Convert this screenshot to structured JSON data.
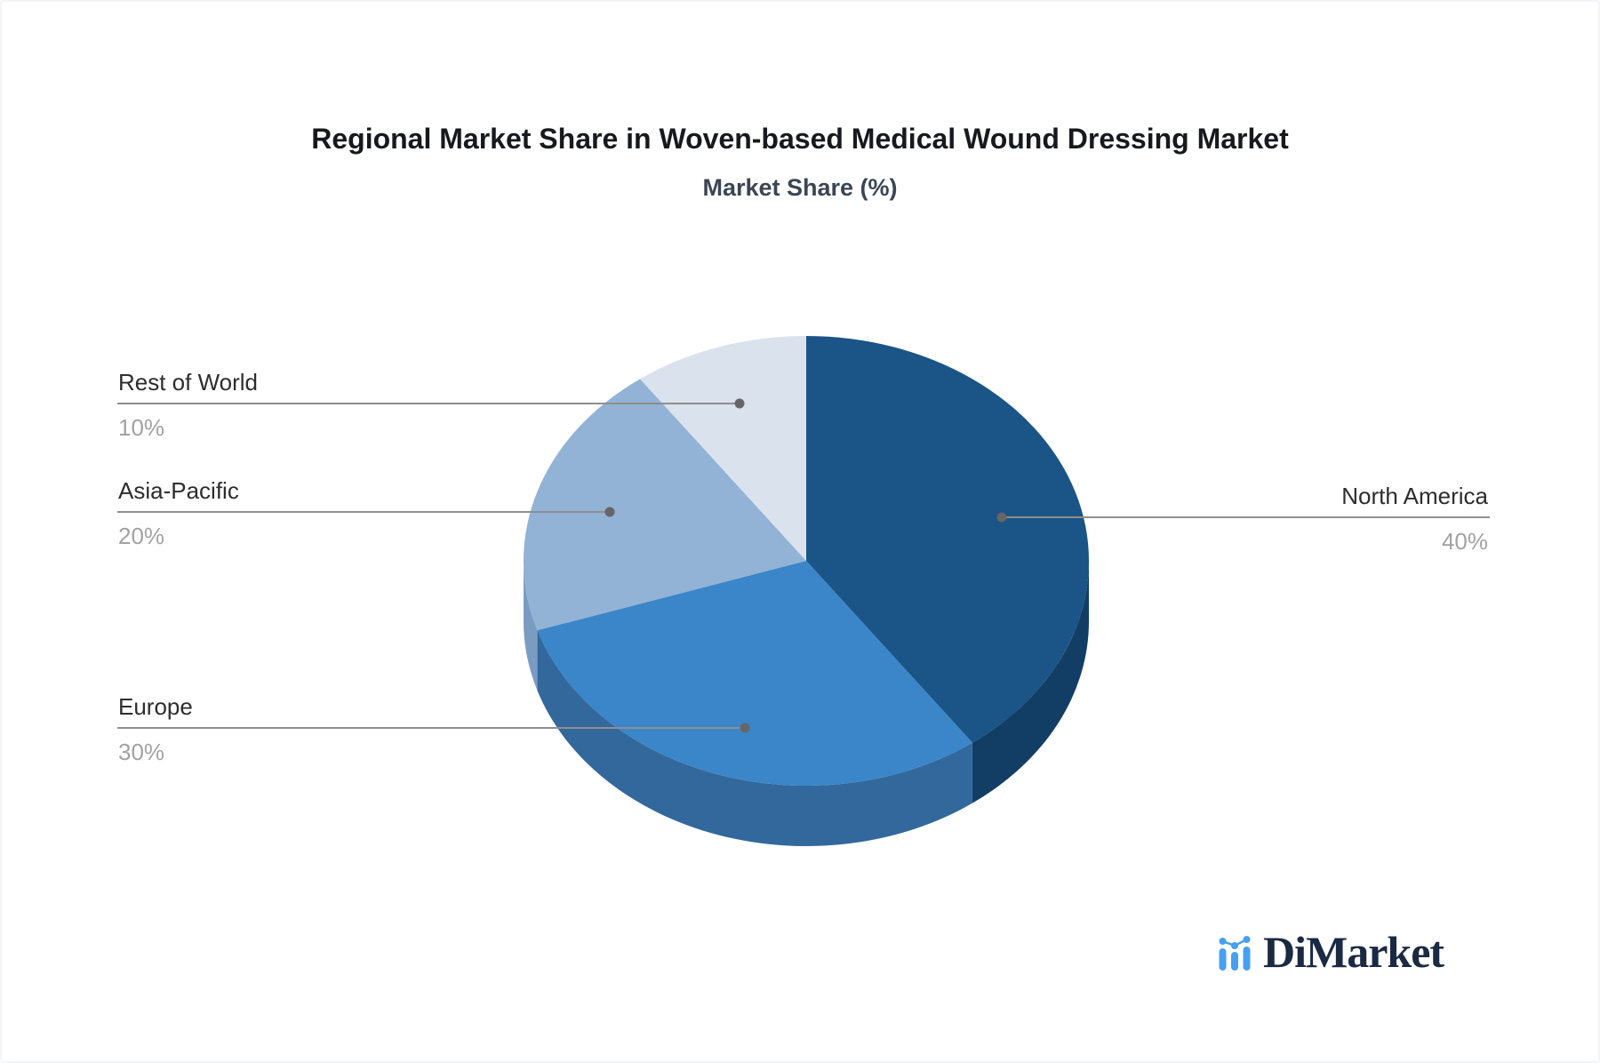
{
  "page": {
    "title": "Regional Market Share in Woven-based Medical Wound Dressing Market",
    "subtitle": "Market Share (%)"
  },
  "logo": {
    "text": "DiMarket"
  },
  "colors": {
    "title": "#17191e",
    "subtitle": "#3b4554",
    "label_text": "#2d2d2d",
    "value_text": "#a2a2a2",
    "leader_line": "#8f8f8f",
    "leader_dot": "#666666",
    "logo_text": "#1a2a42",
    "logo_icon": "#47a0ef"
  },
  "chart_data": {
    "type": "pie",
    "style": "3d",
    "title": "Regional Market Share in Woven-based Medical Wound Dressing Market",
    "subtitle": "Market Share (%)",
    "unit": "%",
    "start_angle_deg": 0,
    "direction": "clockwise",
    "legend_position": "leader-line-callouts",
    "slices": [
      {
        "label": "North America",
        "value": 40,
        "display": "40%",
        "color": "#1b5486",
        "side_color": "#123e66"
      },
      {
        "label": "Europe",
        "value": 30,
        "display": "30%",
        "color": "#3a86c8",
        "side_color": "#32689c"
      },
      {
        "label": "Asia-Pacific",
        "value": 20,
        "display": "20%",
        "color": "#92b2d6",
        "side_color": "#7b9cc2"
      },
      {
        "label": "Rest of World",
        "value": 10,
        "display": "10%",
        "color": "#dae2ee",
        "side_color": "#c2cdde"
      }
    ]
  }
}
